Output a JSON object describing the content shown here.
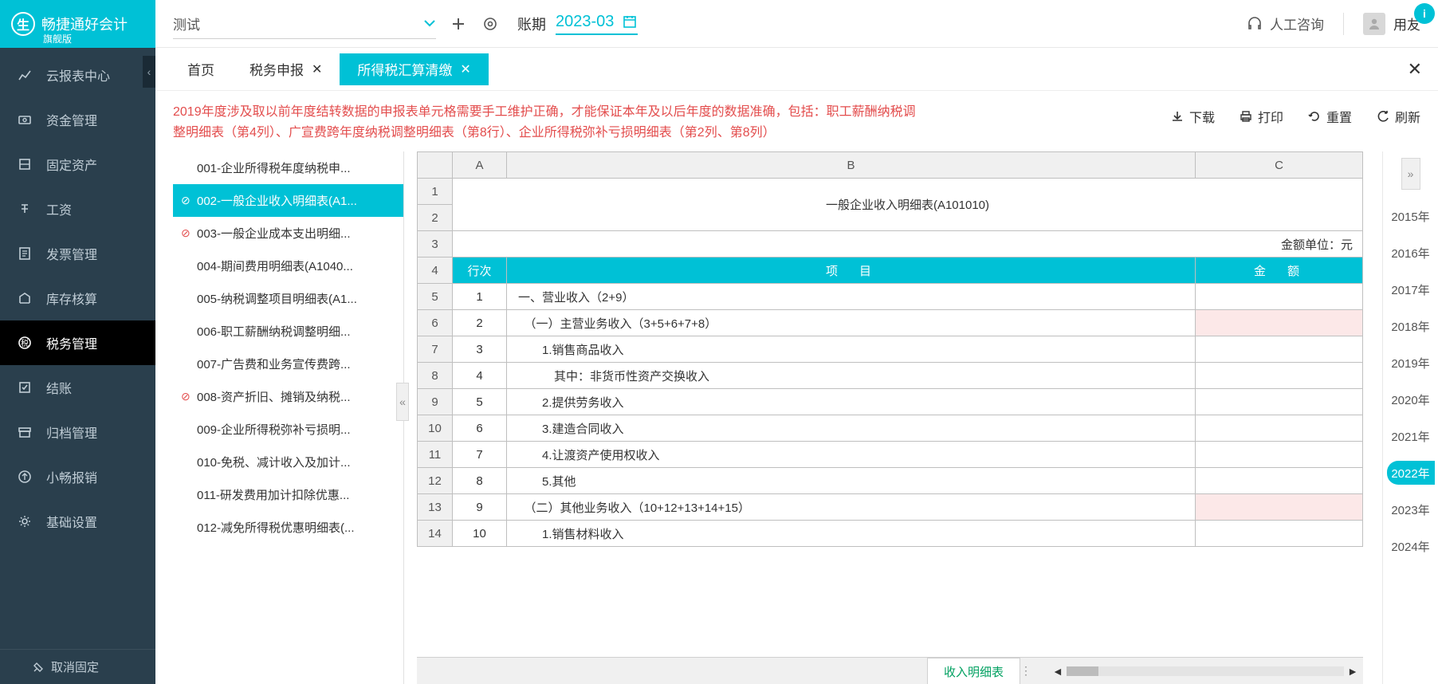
{
  "brand": {
    "name": "畅捷通好会计",
    "edition": "旗舰版",
    "logo_glyph": "生"
  },
  "sidebar": {
    "items": [
      {
        "label": "云报表中心",
        "icon": "chart"
      },
      {
        "label": "资金管理",
        "icon": "money"
      },
      {
        "label": "固定资产",
        "icon": "asset"
      },
      {
        "label": "工资",
        "icon": "salary"
      },
      {
        "label": "发票管理",
        "icon": "invoice"
      },
      {
        "label": "库存核算",
        "icon": "stock"
      },
      {
        "label": "税务管理",
        "icon": "tax"
      },
      {
        "label": "结账",
        "icon": "close-book"
      },
      {
        "label": "归档管理",
        "icon": "archive"
      },
      {
        "label": "小畅报销",
        "icon": "expense"
      },
      {
        "label": "基础设置",
        "icon": "settings"
      }
    ],
    "active_index": 6,
    "pin_label": "取消固定"
  },
  "topbar": {
    "org": "测试",
    "period_label": "账期",
    "period_value": "2023-03",
    "help_label": "人工咨询",
    "user_name": "用友"
  },
  "tabs": {
    "items": [
      {
        "label": "首页",
        "closable": false
      },
      {
        "label": "税务申报",
        "closable": true
      },
      {
        "label": "所得税汇算清缴",
        "closable": true
      }
    ],
    "active_index": 2
  },
  "warning": "2019年度涉及取以前年度结转数据的申报表单元格需要手工维护正确，才能保证本年及以后年度的数据准确，包括：职工薪酬纳税调整明细表（第4列）、广宣费跨年度纳税调整明细表（第8行）、企业所得税弥补亏损明细表（第2列、第8列）",
  "toolbar": {
    "download": "下载",
    "print": "打印",
    "reset": "重置",
    "refresh": "刷新"
  },
  "forms": {
    "items": [
      {
        "label": "001-企业所得税年度纳税申...",
        "warn": false
      },
      {
        "label": "002-一般企业收入明细表(A1...",
        "warn": true
      },
      {
        "label": "003-一般企业成本支出明细...",
        "warn": true
      },
      {
        "label": "004-期间费用明细表(A1040...",
        "warn": false
      },
      {
        "label": "005-纳税调整项目明细表(A1...",
        "warn": false
      },
      {
        "label": "006-职工薪酬纳税调整明细...",
        "warn": false
      },
      {
        "label": "007-广告费和业务宣传费跨...",
        "warn": false
      },
      {
        "label": "008-资产折旧、摊销及纳税...",
        "warn": true
      },
      {
        "label": "009-企业所得税弥补亏损明...",
        "warn": false
      },
      {
        "label": "010-免税、减计收入及加计...",
        "warn": false
      },
      {
        "label": "011-研发费用加计扣除优惠...",
        "warn": false
      },
      {
        "label": "012-减免所得税优惠明细表(...",
        "warn": false
      }
    ],
    "selected_index": 1
  },
  "sheet": {
    "title": "一般企业收入明细表(A101010)",
    "unit_label": "金额单位：元",
    "columns": [
      "A",
      "B",
      "C"
    ],
    "headers": {
      "seq": "行次",
      "item": "项　目",
      "amount": "金　额"
    },
    "tab_label": "收入明细表",
    "rows": [
      {
        "n": "1",
        "seq": "1",
        "item": "一、营业收入（2+9）",
        "pink": false
      },
      {
        "n": "2",
        "seq": "2",
        "item": "　（一）主营业务收入（3+5+6+7+8）",
        "pink": true
      },
      {
        "n": "3",
        "seq": "3",
        "item": "　　1.销售商品收入",
        "pink": false
      },
      {
        "n": "4",
        "seq": "4",
        "item": "　　　其中：非货币性资产交换收入",
        "pink": false
      },
      {
        "n": "5",
        "seq": "5",
        "item": "　　2.提供劳务收入",
        "pink": false
      },
      {
        "n": "6",
        "seq": "6",
        "item": "　　3.建造合同收入",
        "pink": false
      },
      {
        "n": "7",
        "seq": "7",
        "item": "　　4.让渡资产使用权收入",
        "pink": false
      },
      {
        "n": "8",
        "seq": "8",
        "item": "　　5.其他",
        "pink": false
      },
      {
        "n": "9",
        "seq": "9",
        "item": "　（二）其他业务收入（10+12+13+14+15）",
        "pink": true
      },
      {
        "n": "10",
        "seq": "10",
        "item": "　　1.销售材料收入",
        "pink": false
      }
    ],
    "colors": {
      "header_bg": "#00c1d6",
      "pink_bg": "#fce8e8",
      "grid": "#bfbfbf"
    }
  },
  "years": {
    "items": [
      "2015年",
      "2016年",
      "2017年",
      "2018年",
      "2019年",
      "2020年",
      "2021年",
      "2022年",
      "2023年",
      "2024年"
    ],
    "selected_index": 7
  }
}
